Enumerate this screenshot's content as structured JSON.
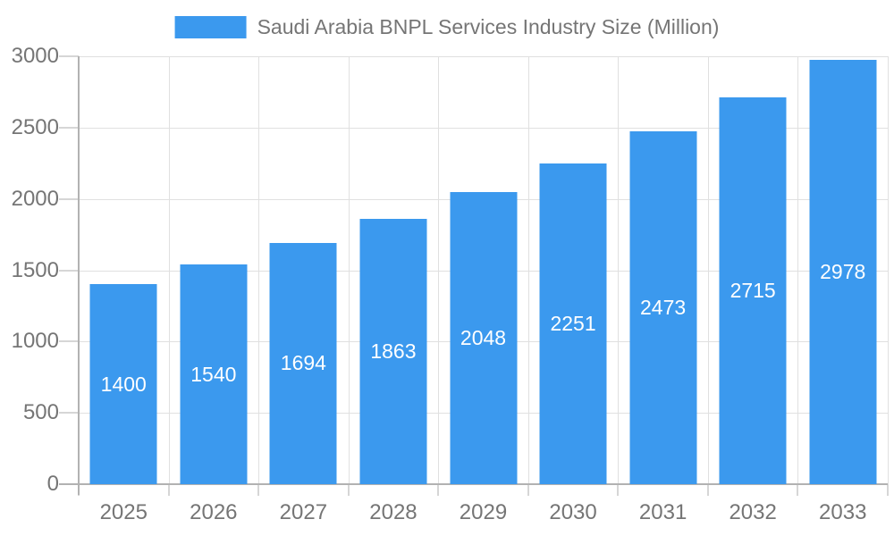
{
  "legend": {
    "label": "Saudi Arabia BNPL Services Industry Size (Million)",
    "swatch_color": "#3b99ee"
  },
  "chart_data": {
    "type": "bar",
    "title": "Saudi Arabia BNPL Services Industry Size (Million)",
    "categories": [
      "2025",
      "2026",
      "2027",
      "2028",
      "2029",
      "2030",
      "2031",
      "2032",
      "2033"
    ],
    "values": [
      1400,
      1540,
      1694,
      1863,
      2048,
      2251,
      2473,
      2715,
      2978
    ],
    "xlabel": "",
    "ylabel": "",
    "ylim": [
      0,
      3000
    ],
    "yticks": [
      0,
      500,
      1000,
      1500,
      2000,
      2500,
      3000
    ],
    "grid": true,
    "legend_position": "top-center",
    "data_labels_position": "inside-center",
    "colors": {
      "bar": "#3b99ee",
      "bar_label": "#ffffff",
      "axis_text": "#757575",
      "gridline": "#e0e0e0",
      "axis_line": "#b2b2b2",
      "tick": "#d6d6d6",
      "background": "#ffffff"
    }
  }
}
